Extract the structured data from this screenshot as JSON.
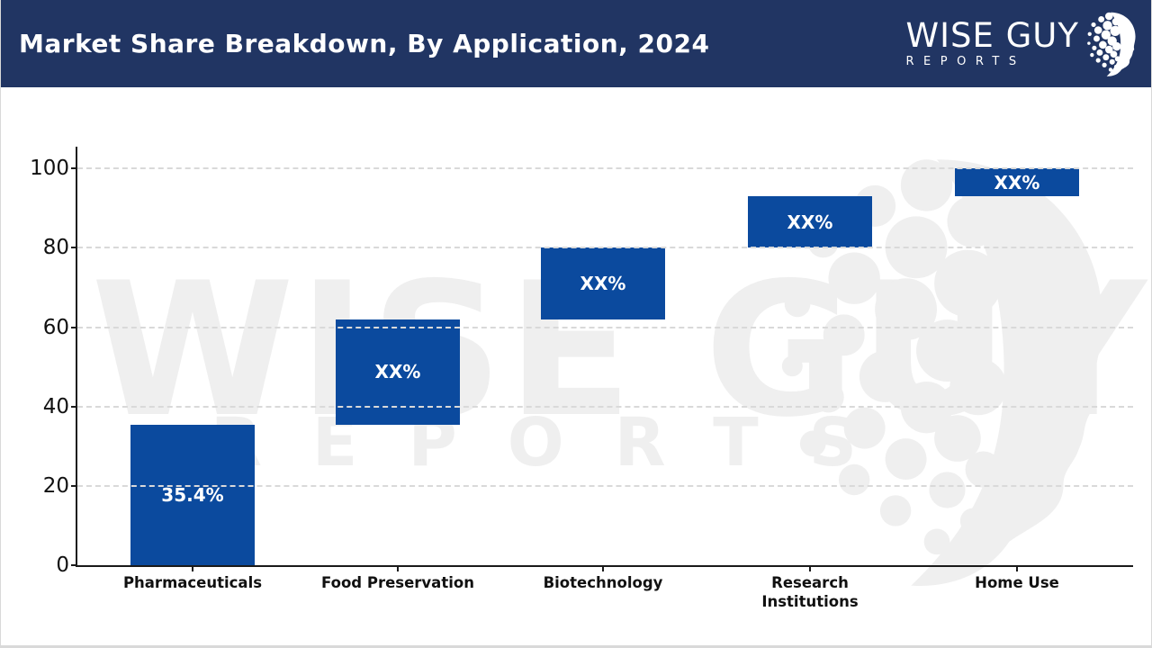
{
  "header": {
    "title": "Market Share Breakdown, By Application, 2024",
    "background_color": "#213563",
    "logo": {
      "line1": "WISE GUY",
      "line2": "REPORTS"
    }
  },
  "watermark": {
    "line1": "WISE GUY",
    "line2": "REPORTS",
    "color": "#efefef"
  },
  "chart_data": {
    "type": "bar",
    "subtype": "waterfall",
    "title": "Market Share Breakdown, By Application, 2024",
    "xlabel": "",
    "ylabel": "",
    "categories": [
      "Pharmaceuticals",
      "Food Preservation",
      "Biotechnology",
      "Research\nInstitutions",
      "Home Use"
    ],
    "segments": [
      {
        "category": "Pharmaceuticals",
        "start": 0,
        "end": 35.4,
        "label": "35.4%"
      },
      {
        "category": "Food Preservation",
        "start": 35.4,
        "end": 62,
        "label": "XX%"
      },
      {
        "category": "Biotechnology",
        "start": 62,
        "end": 80,
        "label": "XX%"
      },
      {
        "category": "Research Institutions",
        "start": 80,
        "end": 93,
        "label": "XX%"
      },
      {
        "category": "Home Use",
        "start": 93,
        "end": 100,
        "label": "XX%"
      }
    ],
    "y_ticks": [
      0,
      20,
      40,
      60,
      80,
      100
    ],
    "ylim": [
      0,
      105
    ],
    "grid": true,
    "grid_style": "dashed",
    "gridline_color": "#d9d9d9",
    "bar_color": "#0b4a9e",
    "bar_label_color": "#ffffff",
    "axis_color": "#1a1a1a",
    "legend": "none"
  }
}
